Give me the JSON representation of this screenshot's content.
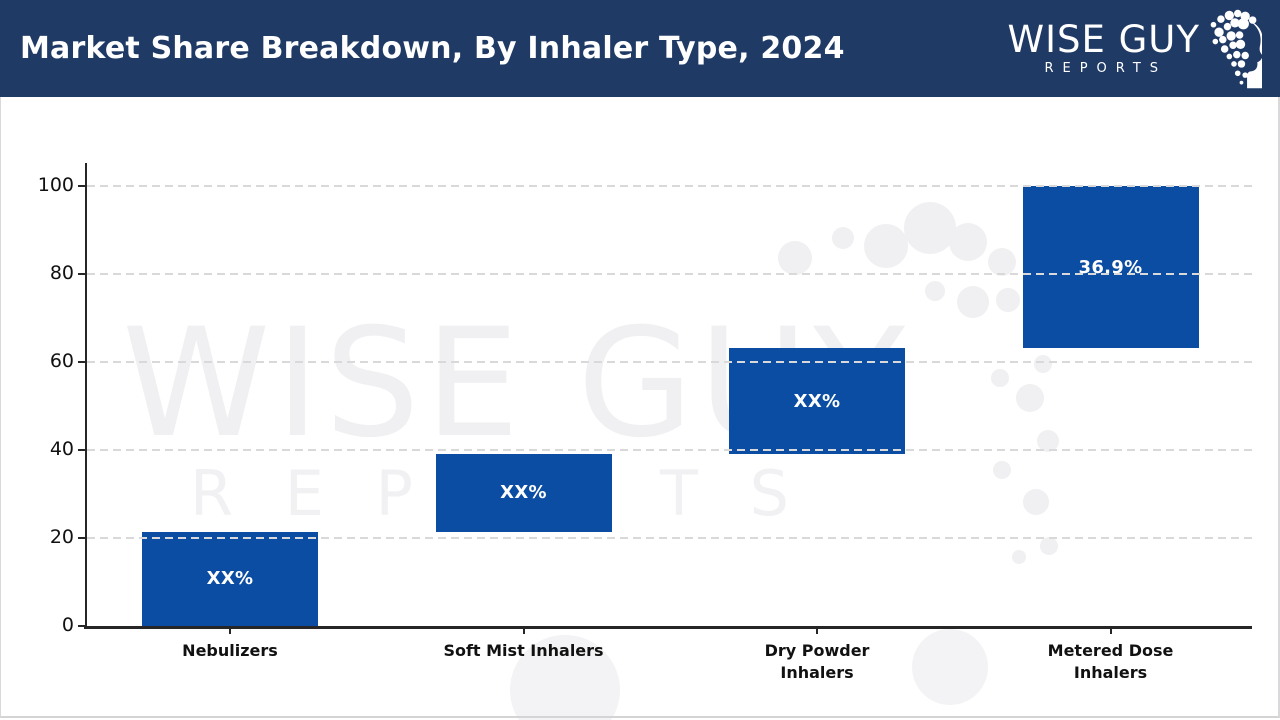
{
  "header": {
    "title": "Market Share Breakdown, By Inhaler Type, 2024",
    "logo": {
      "line1": "WISE GUY",
      "line2": "REPORTS"
    }
  },
  "watermark": {
    "line1": "WISE GUY",
    "line2": "R E P O R T S"
  },
  "colors": {
    "header_bg": "#203a66",
    "bar": "#0b4da2",
    "grid": "#d9d9d9",
    "axis": "#262626",
    "bar_label_text": "#ffffff",
    "tick_text": "#111111",
    "watermark": "#f0f0f2"
  },
  "chart_data": {
    "type": "bar",
    "subtype": "floating-waterfall",
    "title": "Market Share Breakdown, By Inhaler Type, 2024",
    "categories": [
      "Nebulizers",
      "Soft Mist Inhalers",
      "Dry Powder\nInhalers",
      "Metered Dose\nInhalers"
    ],
    "segments": [
      {
        "category": "Nebulizers",
        "start": 0,
        "end": 21.4,
        "value": 21.4,
        "label": "XX%"
      },
      {
        "category": "Soft Mist Inhalers",
        "start": 21.4,
        "end": 39.1,
        "value": 17.7,
        "label": "XX%"
      },
      {
        "category": "Dry Powder Inhalers",
        "start": 39.1,
        "end": 63.1,
        "value": 24.0,
        "label": "XX%"
      },
      {
        "category": "Metered Dose Inhalers",
        "start": 63.1,
        "end": 100,
        "value": 36.9,
        "label": "36.9%"
      }
    ],
    "ylim": [
      0,
      100
    ],
    "yticks": [
      0,
      20,
      40,
      60,
      80,
      100
    ],
    "grid": "dashed-horizontal",
    "legend_position": "none"
  }
}
